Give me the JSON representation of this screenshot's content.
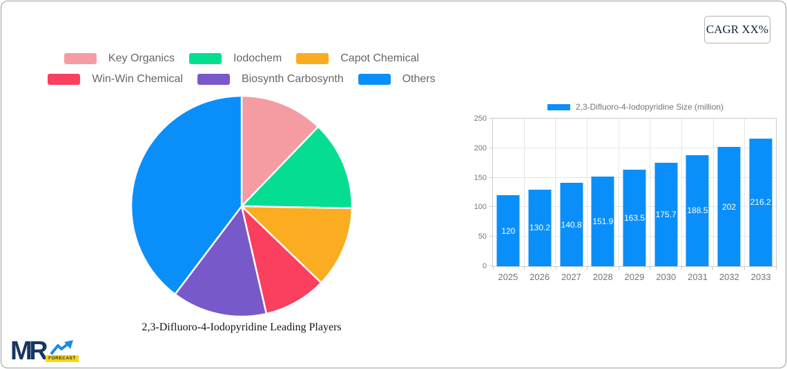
{
  "cagr_badge": {
    "label": "CAGR XX%"
  },
  "logo": {
    "text": "MR",
    "badge": "FORECAST",
    "icon": "trend-up-arrow-icon",
    "text_color": "#173763",
    "arrow_color": "#1E88E5",
    "badge_bg": "#FFD60A",
    "badge_text_color": "#0f2f55"
  },
  "chart_data": [
    {
      "type": "pie",
      "title": "2,3-Difluoro-4-Iodopyridine Leading Players",
      "legend_position": "top",
      "direction": "clockwise",
      "start_angle_deg": 0,
      "legend_rows": [
        [
          0,
          1,
          2
        ],
        [
          3,
          4,
          5
        ]
      ],
      "slices": [
        {
          "label": "Key Organics",
          "percent": 12.2,
          "color": "#F59CA2"
        },
        {
          "label": "Iodochem",
          "percent": 13.1,
          "color": "#05DE90"
        },
        {
          "label": "Capot Chemical",
          "percent": 11.9,
          "color": "#FBAC21"
        },
        {
          "label": "Win-Win Chemical",
          "percent": 9.2,
          "color": "#FA3F5F"
        },
        {
          "label": "Biosynth Carbosynth",
          "percent": 13.9,
          "color": "#7859C9"
        },
        {
          "label": "Others",
          "percent": 39.7,
          "color": "#0A8FFA"
        }
      ]
    },
    {
      "type": "bar",
      "series_name": "2,3-Difluoro-4-Iodopyridine Size (million)",
      "categories": [
        "2025",
        "2026",
        "2027",
        "2028",
        "2029",
        "2030",
        "2031",
        "2032",
        "2033"
      ],
      "values": [
        120,
        130.2,
        140.8,
        151.9,
        163.5,
        175.7,
        188.5,
        202,
        216.2
      ],
      "bar_color": "#0A8FFA",
      "value_label_color": "#ffffff",
      "ylim": [
        0,
        250
      ],
      "yticks": [
        0,
        50,
        100,
        150,
        200,
        250
      ],
      "grid": true,
      "legend_position": "top"
    }
  ]
}
